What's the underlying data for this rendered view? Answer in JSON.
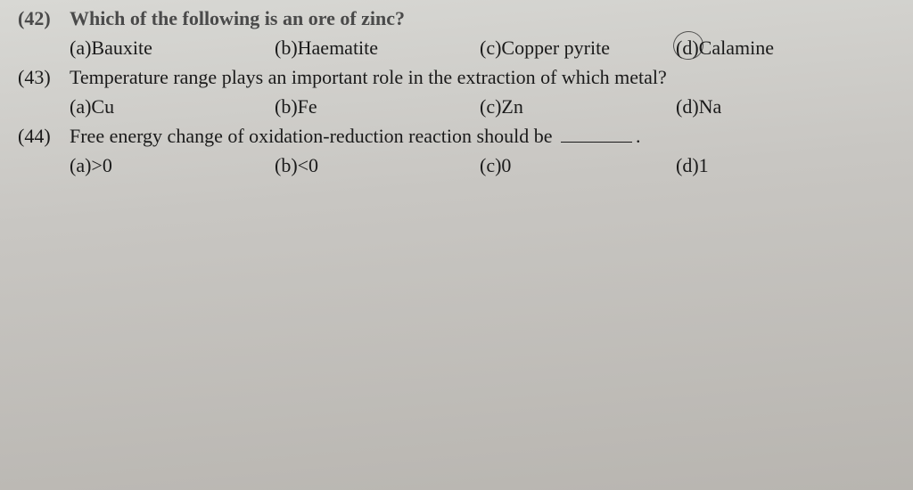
{
  "q42": {
    "number": "(42)",
    "text": "Which of the following is an ore of zinc?",
    "options": {
      "a": "(a)Bauxite",
      "b": "(b)Haematite",
      "c": "(c)Copper pyrite",
      "d_label": "(d)",
      "d_text": "Calamine"
    }
  },
  "q43": {
    "number": "(43)",
    "text": "Temperature range plays an important role in the extraction of which metal?",
    "options": {
      "a": "(a)Cu",
      "b": "(b)Fe",
      "c": "(c)Zn",
      "d": "(d)Na"
    }
  },
  "q44": {
    "number": "(44)",
    "text_before": "Free energy change of oxidation-reduction reaction should be ",
    "text_after": ".",
    "options": {
      "a": "(a)>0",
      "b": "(b)<0",
      "c": "(c)0",
      "d": "(d)1"
    }
  }
}
